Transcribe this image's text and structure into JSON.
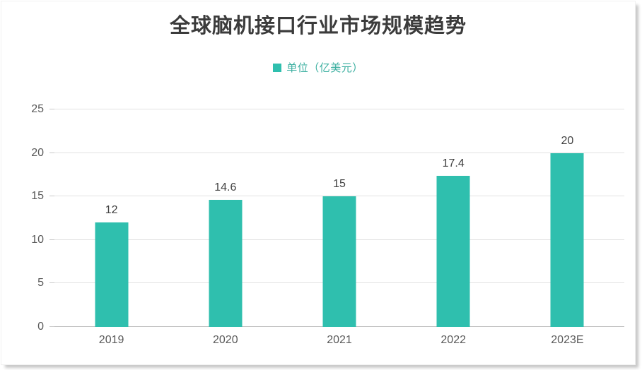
{
  "chart_data": {
    "type": "bar",
    "title": "全球脑机接口行业市场规模趋势",
    "legend": "单位（亿美元）",
    "legend_position": "top",
    "categories": [
      "2019",
      "2020",
      "2021",
      "2022",
      "2023E"
    ],
    "values": [
      12,
      14.6,
      15,
      17.4,
      20
    ],
    "value_labels": [
      "12",
      "14.6",
      "15",
      "17.4",
      "20"
    ],
    "xlabel": "",
    "ylabel": "",
    "ylim": [
      0,
      25
    ],
    "yticks": [
      0,
      5,
      10,
      15,
      20,
      25
    ],
    "grid": "horizontal",
    "colors": {
      "bar": "#2FBFAE",
      "legend_text": "#3BAFA0",
      "title_text": "#3B3B3B",
      "value_text": "#404040",
      "axis_text": "#595959",
      "gridline": "#E2E2E2",
      "axis_line": "#BFBFBF",
      "tick": "#C9C9C9"
    }
  }
}
